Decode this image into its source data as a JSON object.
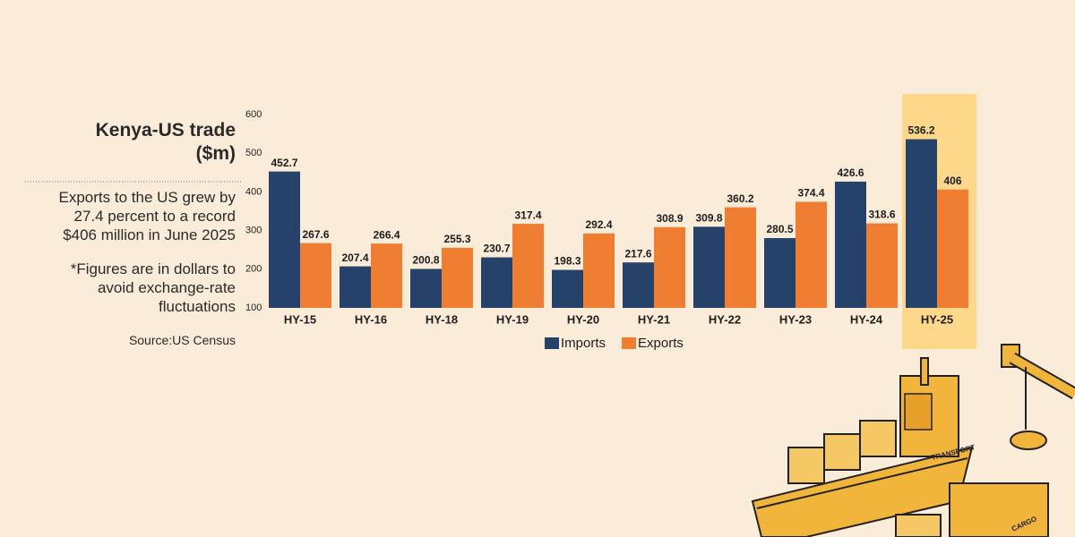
{
  "chart_data": {
    "type": "bar",
    "title": "Kenya-US trade",
    "unit": "($m)",
    "description": [
      "Exports to the US grew by",
      "27.4 percent to a record",
      "$406 million in June 2025"
    ],
    "note": [
      "*Figures are in dollars to",
      "avoid exchange-rate",
      "fluctuations"
    ],
    "source": "Source:US Census",
    "categories": [
      "HY-15",
      "HY-16",
      "HY-18",
      "HY-19",
      "HY-20",
      "HY-21",
      "HY-22",
      "HY-23",
      "HY-24",
      "HY-25"
    ],
    "series": [
      {
        "name": "Imports",
        "color": "#25426a",
        "values": [
          452.7,
          207.4,
          200.8,
          230.7,
          198.3,
          217.6,
          309.8,
          280.5,
          426.6,
          536.2
        ]
      },
      {
        "name": "Exports",
        "color": "#ef7e33",
        "values": [
          267.6,
          266.4,
          255.3,
          317.4,
          292.4,
          308.9,
          360.2,
          374.4,
          318.6,
          406
        ]
      }
    ],
    "ylim": [
      100,
      600
    ],
    "yticks": [
      100,
      200,
      300,
      400,
      500,
      600
    ],
    "highlight": "HY-25",
    "illustration_labels": [
      "TRANSPORT",
      "CARGO"
    ]
  }
}
